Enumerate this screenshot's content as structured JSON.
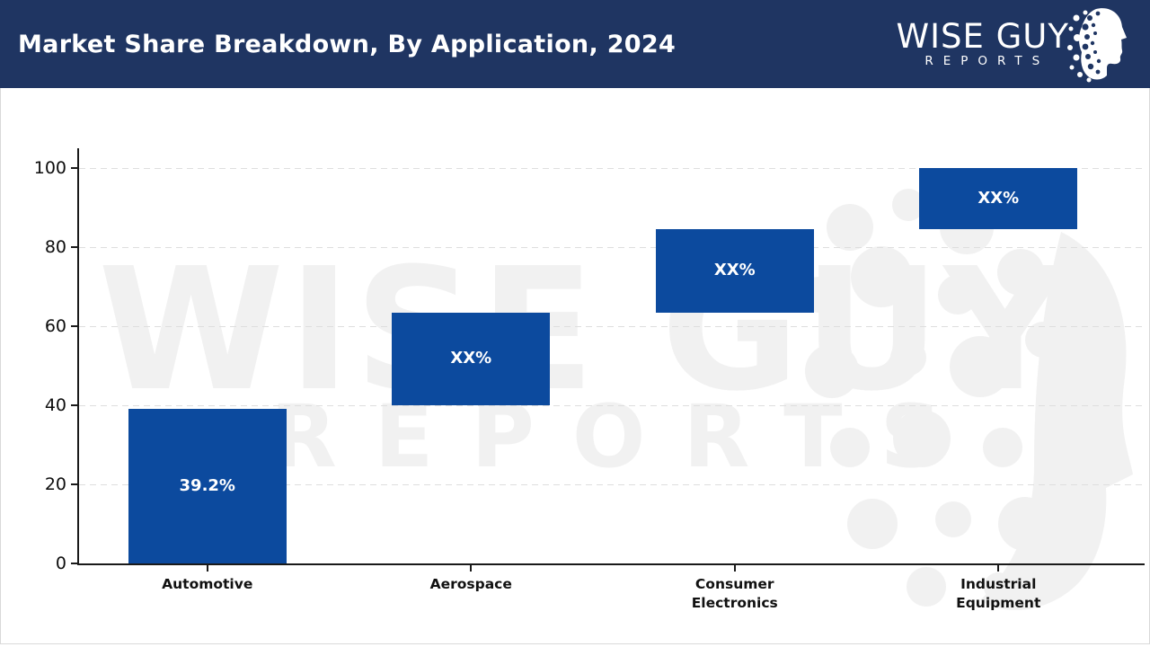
{
  "header": {
    "title": "Market Share Breakdown, By Application, 2024",
    "logo": {
      "primary": "WISE GUY",
      "secondary": "REPORTS"
    }
  },
  "watermark": {
    "primary": "WISE GUY",
    "secondary": "REPORTS"
  },
  "colors": {
    "header_bg": "#1f3562",
    "header_text": "#ffffff",
    "bar": "#0c4a9e",
    "bar_label": "#ffffff",
    "grid": "#dedede",
    "axis": "#1a1a1a",
    "tick_label": "#0d0d0d",
    "category_label": "#111111",
    "watermark": "#f1f1f1",
    "frame_border": "#d9d9d9"
  },
  "chart_data": {
    "type": "bar",
    "subtype": "waterfall",
    "title": "Market Share Breakdown, By Application, 2024",
    "categories": [
      "Automotive",
      "Aerospace",
      "Consumer Electronics",
      "Industrial Equipment"
    ],
    "category_lines": [
      [
        "Automotive"
      ],
      [
        "Aerospace"
      ],
      [
        "Consumer",
        "Electronics"
      ],
      [
        "Industrial",
        "Equipment"
      ]
    ],
    "segments": [
      {
        "category": "Automotive",
        "start": 0,
        "end": 39.2,
        "label": "39.2%"
      },
      {
        "category": "Aerospace",
        "start": 40,
        "end": 63.5,
        "label": "XX%"
      },
      {
        "category": "Consumer Electronics",
        "start": 63.5,
        "end": 84.5,
        "label": "XX%"
      },
      {
        "category": "Industrial Equipment",
        "start": 84.5,
        "end": 100,
        "label": "XX%"
      }
    ],
    "yticks": [
      0,
      20,
      40,
      60,
      80,
      100
    ],
    "ylim": [
      0,
      105
    ],
    "xlabel": "",
    "ylabel": "",
    "grid": "dashed-horizontal",
    "legend": null
  }
}
